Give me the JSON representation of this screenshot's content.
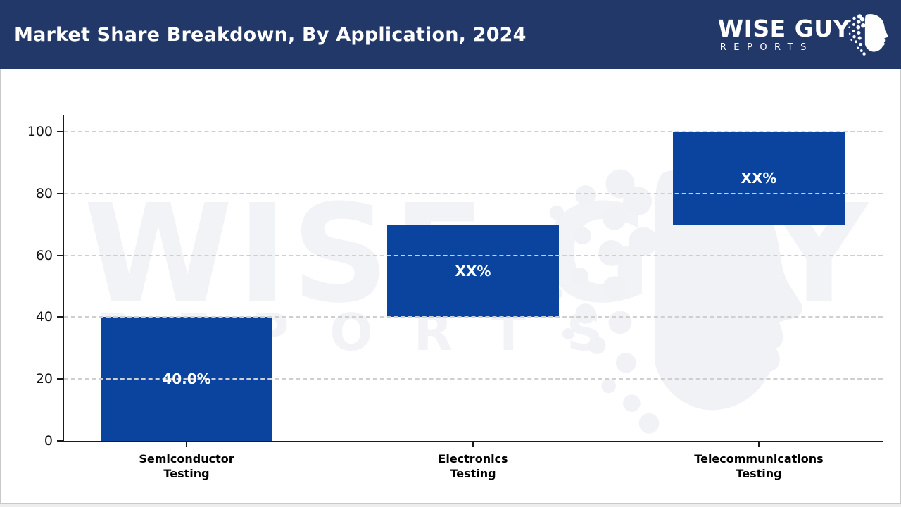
{
  "header": {
    "title": "Market Share Breakdown, By Application, 2024",
    "bg_color": "#213869",
    "logo": {
      "line1": "WISE GUY",
      "line2": "REPORTS"
    }
  },
  "watermark": {
    "line1": "WISE GUY",
    "line2": "REPORTS"
  },
  "chart_data": {
    "type": "bar",
    "subtype": "waterfall",
    "title": "Market Share Breakdown, By Application, 2024",
    "categories": [
      [
        "Semiconductor",
        "Testing"
      ],
      [
        "Electronics",
        "Testing"
      ],
      [
        "Telecommunications",
        "Testing"
      ]
    ],
    "bars": [
      {
        "category": "Semiconductor Testing",
        "start": 0,
        "end": 40,
        "label": "40.0%"
      },
      {
        "category": "Electronics Testing",
        "start": 40,
        "end": 70,
        "label": "XX%"
      },
      {
        "category": "Telecommunications Testing",
        "start": 70,
        "end": 100,
        "label": "XX%"
      }
    ],
    "yticks": [
      0,
      20,
      40,
      60,
      80,
      100
    ],
    "ylim": [
      0,
      105.5
    ],
    "xlabel": "",
    "ylabel": "",
    "grid": "horizontal-dashed",
    "legend": "none",
    "bar_color": "#0a449e",
    "grid_color": "#cfcfcf",
    "axis_color": "#1a1a1a",
    "value_label_color": "#ffffff",
    "tick_label_color": "#111111"
  }
}
